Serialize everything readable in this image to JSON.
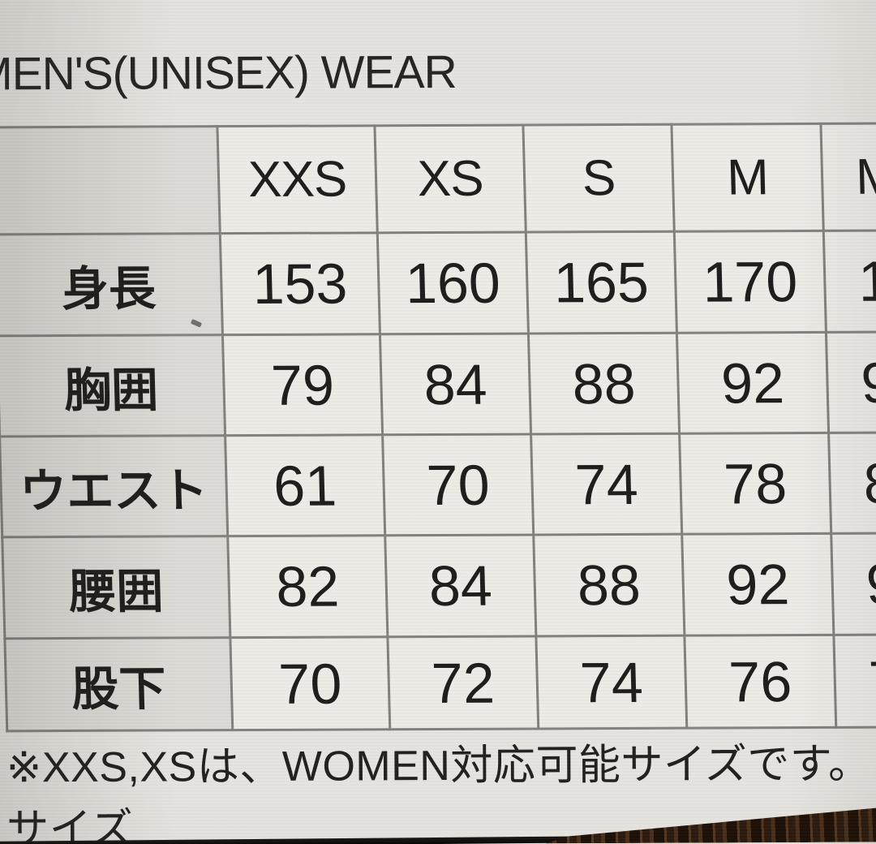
{
  "title": "MEN'S(UNISEX) WEAR",
  "size_chart": {
    "corner_label": "",
    "columns": [
      "XXS",
      "XS",
      "S",
      "M",
      "M"
    ],
    "rows": [
      {
        "label": "身長",
        "values": [
          "153",
          "160",
          "165",
          "170",
          "1"
        ]
      },
      {
        "label": "胸囲",
        "values": [
          "79",
          "84",
          "88",
          "92",
          "9"
        ]
      },
      {
        "label": "ウエスト",
        "values": [
          "61",
          "70",
          "74",
          "78",
          "8"
        ]
      },
      {
        "label": "腰囲",
        "values": [
          "82",
          "84",
          "88",
          "92",
          "9"
        ]
      },
      {
        "label": "股下",
        "values": [
          "70",
          "72",
          "74",
          "76",
          "7"
        ]
      }
    ]
  },
  "footnote": {
    "line1": "※XXS,XSは、WOMEN対応可能サイズです。",
    "line2": "サイズ"
  },
  "colors": {
    "paper": "#e6e4df",
    "cell_data": "#edebe6",
    "cell_label": "#dcdad5",
    "grid_line": "#82817c",
    "text": "#1e1d1b",
    "wood_dark": "#1d1006",
    "wood_mid": "#2c1a0d",
    "wood_light": "#4a2f19"
  }
}
